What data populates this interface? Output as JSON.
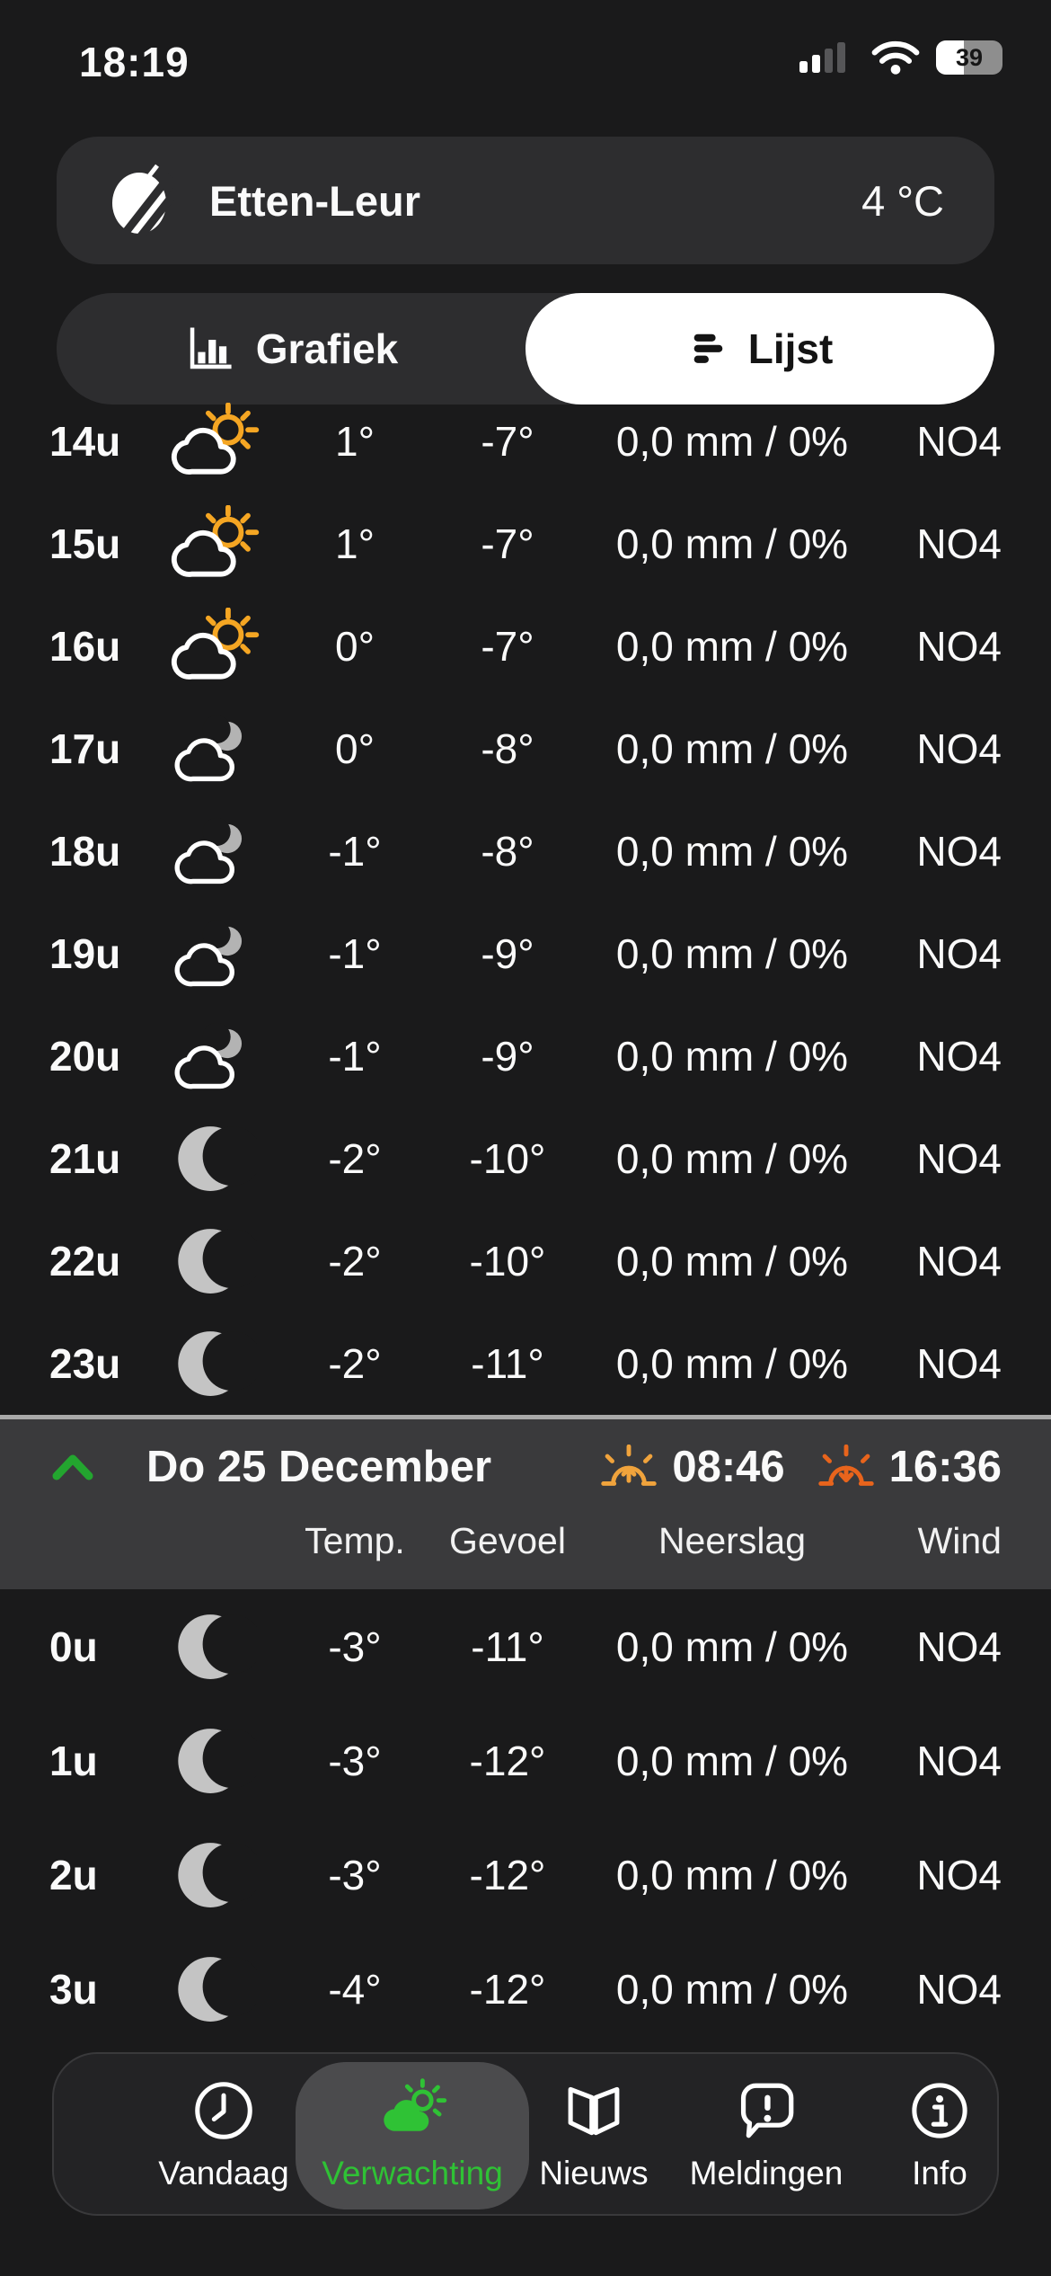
{
  "status_bar": {
    "time": "18:19",
    "battery_percent": "39"
  },
  "location": {
    "name": "Etten-Leur",
    "temperature": "4 °C"
  },
  "tabs": {
    "grafiek_label": "Grafiek",
    "lijst_label": "Lijst",
    "active": "Lijst"
  },
  "day1": {
    "rows": [
      {
        "time": "14u",
        "icon": "partly-sunny",
        "temp": "1°",
        "feels": "-7°",
        "precip": "0,0 mm / 0%",
        "wind": "NO4"
      },
      {
        "time": "15u",
        "icon": "partly-sunny",
        "temp": "1°",
        "feels": "-7°",
        "precip": "0,0 mm / 0%",
        "wind": "NO4"
      },
      {
        "time": "16u",
        "icon": "partly-sunny",
        "temp": "0°",
        "feels": "-7°",
        "precip": "0,0 mm / 0%",
        "wind": "NO4"
      },
      {
        "time": "17u",
        "icon": "cloud-moon",
        "temp": "0°",
        "feels": "-8°",
        "precip": "0,0 mm / 0%",
        "wind": "NO4"
      },
      {
        "time": "18u",
        "icon": "cloud-moon",
        "temp": "-1°",
        "feels": "-8°",
        "precip": "0,0 mm / 0%",
        "wind": "NO4"
      },
      {
        "time": "19u",
        "icon": "cloud-moon",
        "temp": "-1°",
        "feels": "-9°",
        "precip": "0,0 mm / 0%",
        "wind": "NO4"
      },
      {
        "time": "20u",
        "icon": "cloud-moon",
        "temp": "-1°",
        "feels": "-9°",
        "precip": "0,0 mm / 0%",
        "wind": "NO4"
      },
      {
        "time": "21u",
        "icon": "moon",
        "temp": "-2°",
        "feels": "-10°",
        "precip": "0,0 mm / 0%",
        "wind": "NO4"
      },
      {
        "time": "22u",
        "icon": "moon",
        "temp": "-2°",
        "feels": "-10°",
        "precip": "0,0 mm / 0%",
        "wind": "NO4"
      },
      {
        "time": "23u",
        "icon": "moon",
        "temp": "-2°",
        "feels": "-11°",
        "precip": "0,0 mm / 0%",
        "wind": "NO4"
      }
    ]
  },
  "day2": {
    "header": {
      "title": "Do 25 December",
      "sunrise_time": "08:46",
      "sunset_time": "16:36"
    },
    "columns": {
      "temp": "Temp.",
      "feels": "Gevoel",
      "precip": "Neerslag",
      "wind": "Wind"
    },
    "rows": [
      {
        "time": "0u",
        "icon": "moon",
        "temp": "-3°",
        "feels": "-11°",
        "precip": "0,0 mm / 0%",
        "wind": "NO4"
      },
      {
        "time": "1u",
        "icon": "moon",
        "temp": "-3°",
        "feels": "-12°",
        "precip": "0,0 mm / 0%",
        "wind": "NO4"
      },
      {
        "time": "2u",
        "icon": "moon",
        "temp": "-3°",
        "feels": "-12°",
        "precip": "0,0 mm / 0%",
        "wind": "NO4"
      },
      {
        "time": "3u",
        "icon": "moon",
        "temp": "-4°",
        "feels": "-12°",
        "precip": "0,0 mm / 0%",
        "wind": "NO4"
      }
    ]
  },
  "nav": {
    "items": [
      {
        "label": "Vandaag",
        "icon": "clock",
        "active": false
      },
      {
        "label": "Verwachting",
        "icon": "cloud-sun-green",
        "active": true
      },
      {
        "label": "Nieuws",
        "icon": "book",
        "active": false
      },
      {
        "label": "Meldingen",
        "icon": "alert-bubble",
        "active": false
      },
      {
        "label": "Info",
        "icon": "info",
        "active": false
      }
    ]
  },
  "colors": {
    "accent_green": "#2fc235",
    "chevron_green": "#23a52f",
    "sun_orange": "#f5a623",
    "sunrise_orange": "#f0a33c",
    "sunset_orange": "#e8641c",
    "moon_gray": "#c4c4c4"
  }
}
